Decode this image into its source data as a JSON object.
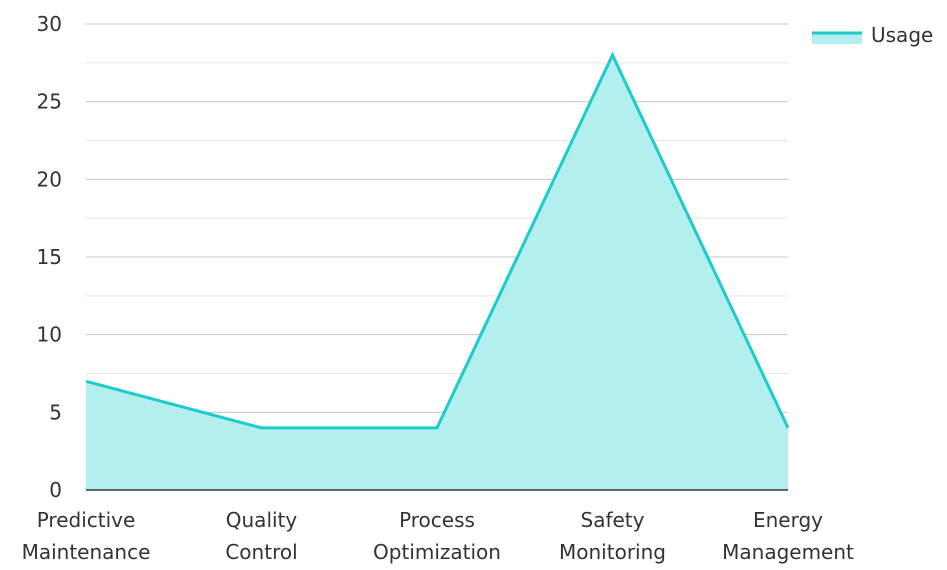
{
  "chart_data": {
    "type": "area",
    "title": "",
    "xlabel": "",
    "ylabel": "",
    "categories": [
      [
        "Predictive",
        "Maintenance"
      ],
      [
        "Quality",
        "Control"
      ],
      [
        "Process",
        "Optimization"
      ],
      [
        "Safety",
        "Monitoring"
      ],
      [
        "Energy",
        "Management"
      ]
    ],
    "series": [
      {
        "name": "Usage",
        "values": [
          7,
          4,
          4,
          28,
          4
        ]
      }
    ],
    "ylim": [
      0,
      30
    ],
    "yticks": [
      0,
      5,
      10,
      15,
      20,
      25,
      30
    ],
    "minor_grid_step": 2.5,
    "grid": true,
    "legend": {
      "position": "top-right"
    },
    "colors": {
      "line": "#1ECBCB",
      "fill": "#B3EFEF",
      "grid": "#CCCCCC",
      "axis": "#333333",
      "text": "#333333"
    }
  }
}
